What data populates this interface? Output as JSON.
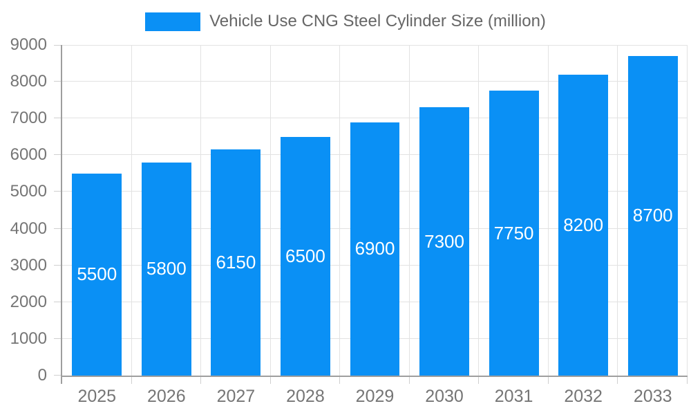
{
  "legend": {
    "label": "Vehicle Use CNG Steel Cylinder Size (million)"
  },
  "chart_data": {
    "type": "bar",
    "title": "Vehicle Use CNG Steel Cylinder Size (million)",
    "series_name": "Vehicle Use CNG Steel Cylinder Size (million)",
    "categories": [
      "2025",
      "2026",
      "2027",
      "2028",
      "2029",
      "2030",
      "2031",
      "2032",
      "2033"
    ],
    "values": [
      5500,
      5800,
      6150,
      6500,
      6900,
      7300,
      7750,
      8200,
      8700
    ],
    "xlabel": "",
    "ylabel": "",
    "ylim": [
      0,
      9000
    ],
    "yticks": [
      0,
      1000,
      2000,
      3000,
      4000,
      5000,
      6000,
      7000,
      8000,
      9000
    ],
    "grid": true,
    "legend_position": "top-center",
    "value_label_position": "inside-center",
    "bar_width_fraction": 0.715,
    "colors": {
      "bar": "#0a90f5",
      "value_label": "#ffffff",
      "axis_line": "#9e9e9e",
      "gridline": "#e2e2e2",
      "tick_mark": "#cfcfcf",
      "tick_label": "#757575",
      "legend_text": "#666666",
      "background": "#ffffff"
    }
  }
}
